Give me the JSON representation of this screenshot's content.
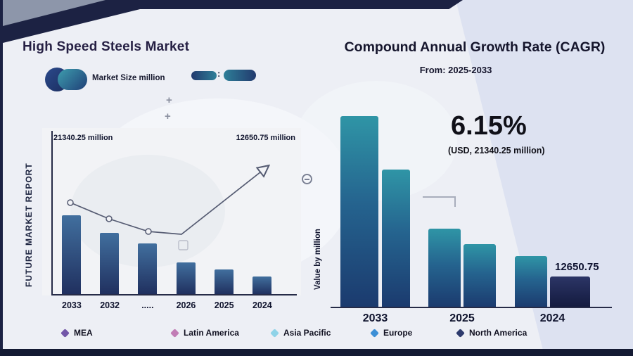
{
  "title_left": "High Speed Steels Market",
  "market_size_legend": {
    "label": "Market Size million",
    "colon": ":"
  },
  "decor": {
    "plus1": "+",
    "plus2": "+"
  },
  "left_chart": {
    "max_label": "21340.25 million",
    "min_label": "12650.75 million",
    "side_label": "FUTURE MARKET REPORT",
    "axis_label": "Value by million"
  },
  "cagr": {
    "title": "Compound Annual Growth Rate (CAGR)",
    "subtitle": "From: 2025-2033",
    "value": "6.15%",
    "usd_note": "(USD, 21340.25 million)"
  },
  "right_chart": {
    "annotation": "12650.75"
  },
  "legend": {
    "items": [
      {
        "label": "MEA",
        "color": "#7256a8"
      },
      {
        "label": "Latin America",
        "color": "#c17cb5"
      },
      {
        "label": "Asia Pacific",
        "color": "#8fd3e8"
      },
      {
        "label": "Europe",
        "color": "#3c8fd6"
      },
      {
        "label": "North America",
        "color": "#2d3a6d"
      }
    ]
  },
  "palette": {
    "navy_dark": "#1c2243",
    "bottom_bar": "#141a33",
    "panel_lavender": "#dde2f1",
    "chart_bg": "#f2f3f6",
    "left_bar_top": "#416f9e",
    "left_bar_bottom": "#20305f",
    "bar_teal_top": "#2f95a6",
    "bar_navy_bottom": "#1b3a6e"
  },
  "chart_data": [
    {
      "type": "bar",
      "title": "High Speed Steels Market — Market Size (million)",
      "categories": [
        "2033",
        "2032",
        ".....",
        "2026",
        "2025",
        "2024"
      ],
      "values": [
        21340.25,
        19700,
        18100,
        15600,
        14100,
        12650.75
      ],
      "labeled_points": {
        "2033": 21340.25,
        "2024": 12650.75
      },
      "relative_heights": [
        1.0,
        0.78,
        0.64,
        0.4,
        0.31,
        0.22
      ],
      "ylabel": "Value by million",
      "note": "declining bars with trend markers and rising outline arrow"
    },
    {
      "type": "bar",
      "title": "Compound Annual Growth Rate (CAGR)",
      "subtitle": "From: 2025-2033",
      "cagr_percent": 6.15,
      "usd_value_million": 21340.25,
      "categories": [
        "2033",
        "2025",
        "2024"
      ],
      "groups": [
        {
          "category": "2033",
          "relative_heights": [
            1.0,
            0.72
          ],
          "variants": [
            "teal",
            "teal"
          ]
        },
        {
          "category": "2025",
          "relative_heights": [
            0.41,
            0.33
          ],
          "variants": [
            "teal",
            "teal"
          ]
        },
        {
          "category": "2024",
          "relative_heights": [
            0.27,
            0.16
          ],
          "variants": [
            "teal",
            "navy"
          ]
        }
      ],
      "annotation_value": 12650.75
    }
  ]
}
